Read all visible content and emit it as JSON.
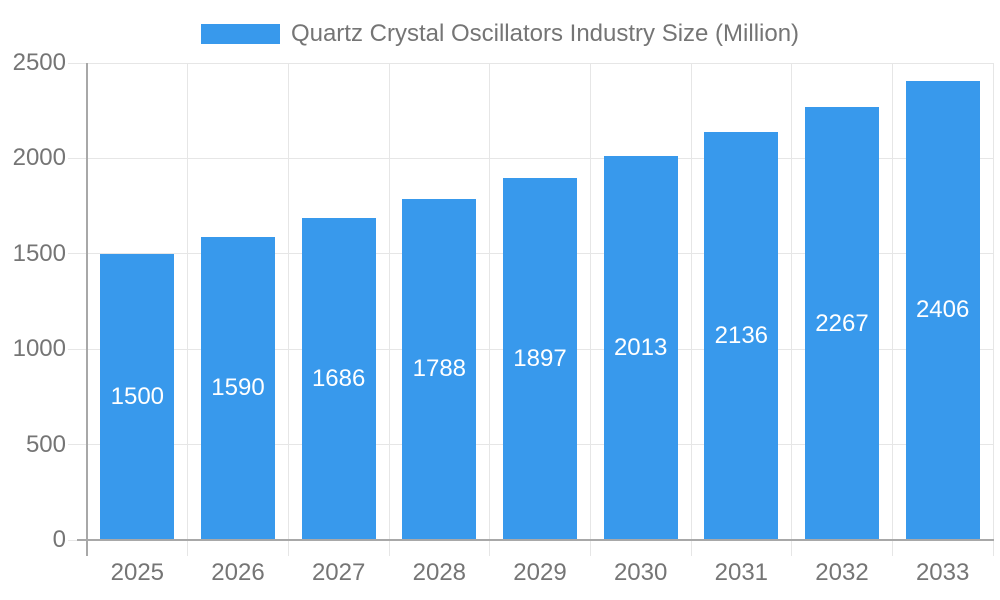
{
  "legend": {
    "swatch_color": "#3899EC",
    "label": "Quartz Crystal Oscillators Industry Size (Million)"
  },
  "chart_data": {
    "type": "bar",
    "title": "Quartz Crystal Oscillators Industry Size (Million)",
    "categories": [
      "2025",
      "2026",
      "2027",
      "2028",
      "2029",
      "2030",
      "2031",
      "2032",
      "2033"
    ],
    "values": [
      1500,
      1590,
      1686,
      1788,
      1897,
      2013,
      2136,
      2267,
      2406
    ],
    "series_name": "Quartz Crystal Oscillators Industry Size (Million)",
    "xlabel": "",
    "ylabel": "",
    "ylim": [
      0,
      2500
    ],
    "yticks": [
      0,
      500,
      1000,
      1500,
      2000,
      2500
    ],
    "grid": true,
    "legend_position": "top",
    "value_labels": "inside-center",
    "colors": {
      "bar": "#3899EC",
      "bar_value_label": "#ffffff",
      "axis_text": "#757575",
      "grid_line": "#e6e6e6",
      "axis_line": "#a8a8a8",
      "background": "#ffffff"
    }
  }
}
